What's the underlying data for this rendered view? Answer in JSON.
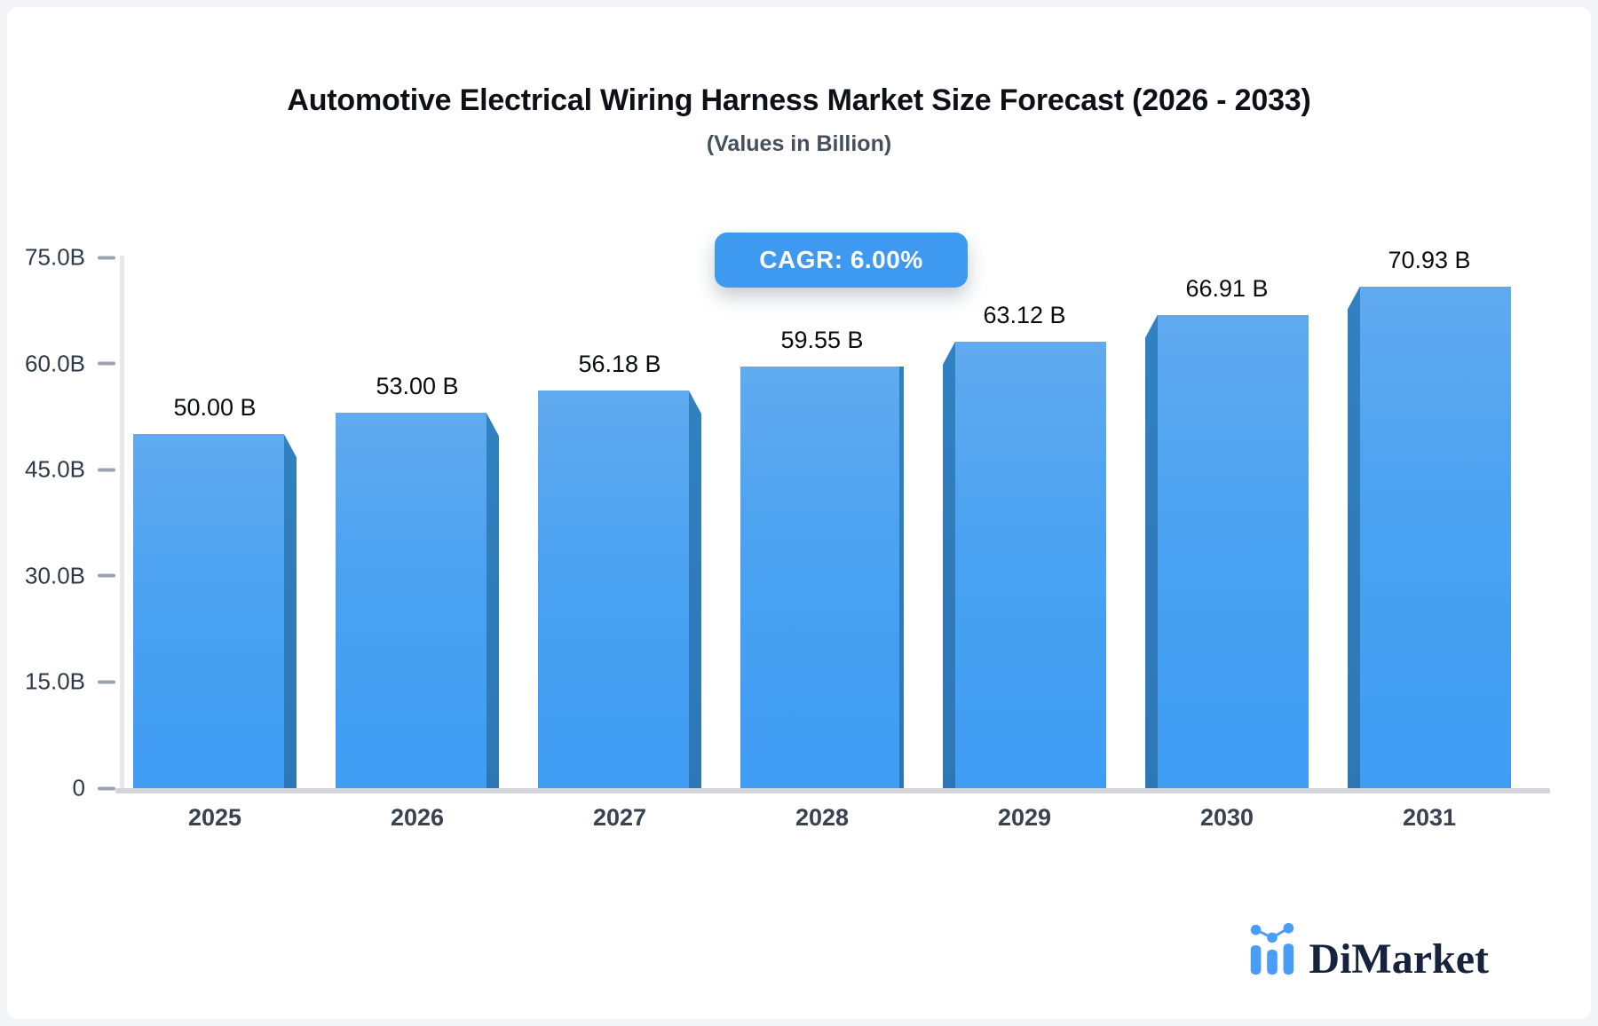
{
  "header": {
    "title": "Automotive Electrical Wiring Harness Market Size Forecast (2026 - 2033)",
    "subtitle": "(Values in Billion)",
    "cagr_badge": "CAGR: 6.00%"
  },
  "chart_data": {
    "type": "bar",
    "title": "Automotive Electrical Wiring Harness Market Size Forecast (2026 - 2033)",
    "subtitle": "(Values in Billion)",
    "categories": [
      "2025",
      "2026",
      "2027",
      "2028",
      "2029",
      "2030",
      "2031"
    ],
    "values": [
      50.0,
      53.0,
      56.18,
      59.55,
      63.12,
      66.91,
      70.93
    ],
    "value_labels": [
      "50.00 B",
      "53.00 B",
      "56.18 B",
      "59.55 B",
      "63.12 B",
      "66.91 B",
      "70.93 B"
    ],
    "xlabel": "",
    "ylabel": "",
    "ylim": [
      0,
      75
    ],
    "ytick_labels_top_down": [
      "75.0B",
      "60.0B",
      "45.0B",
      "30.0B",
      "15.0B",
      "0"
    ],
    "grid": false,
    "legend": "none",
    "annotation": "CAGR: 6.00%",
    "bar_color_top": "#61aaef",
    "bar_color_bottom": "#3f9df4",
    "bar_side_color": "#2e77b5",
    "accent_color": "#3e9af0"
  },
  "logo": {
    "wordmark": "DiMarket",
    "icon": "mini-bar-chart-icon",
    "icon_color": "#4a9df6",
    "text_color": "#16233c"
  }
}
